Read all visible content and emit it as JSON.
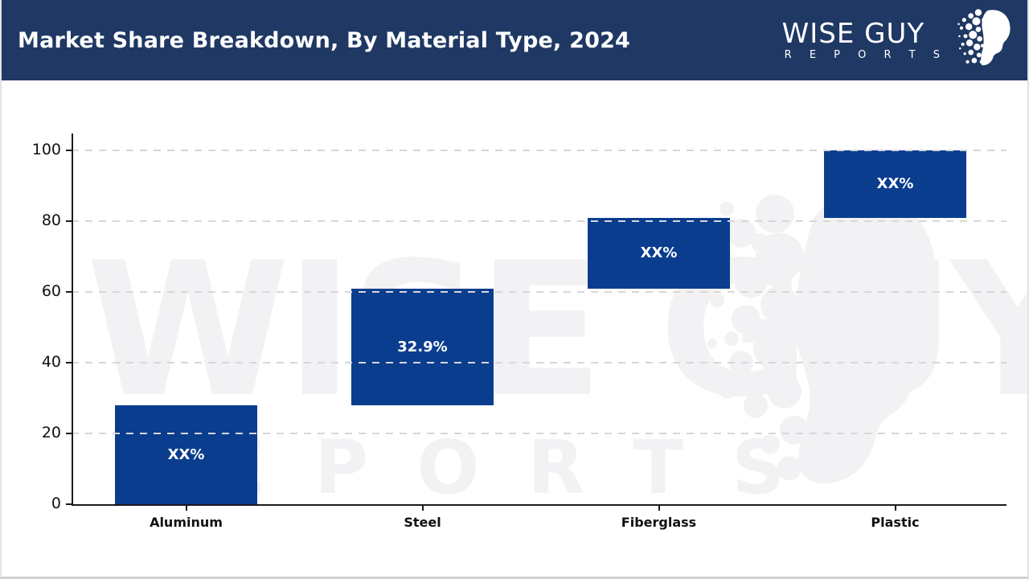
{
  "header": {
    "title": "Market Share Breakdown, By Material Type, 2024",
    "logo": {
      "wordmark": "WISE GUY",
      "subtext": "R E P O R T S"
    }
  },
  "watermark": {
    "wordmark": "WISE GUY",
    "subtext": "R E P O R T S"
  },
  "chart_data": {
    "type": "bar",
    "subtype": "floating-waterfall",
    "title": "Market Share Breakdown, By Material Type, 2024",
    "categories": [
      "Aluminum",
      "Steel",
      "Fiberglass",
      "Plastic"
    ],
    "segments": [
      {
        "category": "Aluminum",
        "start": 0,
        "end": 28,
        "label": "XX%"
      },
      {
        "category": "Steel",
        "start": 28,
        "end": 60.9,
        "label": "32.9%"
      },
      {
        "category": "Fiberglass",
        "start": 60.9,
        "end": 81,
        "label": "XX%"
      },
      {
        "category": "Plastic",
        "start": 81,
        "end": 100,
        "label": "XX%"
      }
    ],
    "yticks": [
      0,
      20,
      40,
      60,
      80,
      100
    ],
    "ylim": [
      0,
      104
    ],
    "xlabel": "",
    "ylabel": "",
    "grid": "dashed-horizontal",
    "legend": "none",
    "colors": {
      "bar": "#0b3d8f",
      "header_bg": "#1f3864",
      "grid": "#d7d7d9",
      "axis": "#1a1a1a",
      "bar_label": "#ffffff",
      "watermark": "#f2f2f4"
    }
  }
}
